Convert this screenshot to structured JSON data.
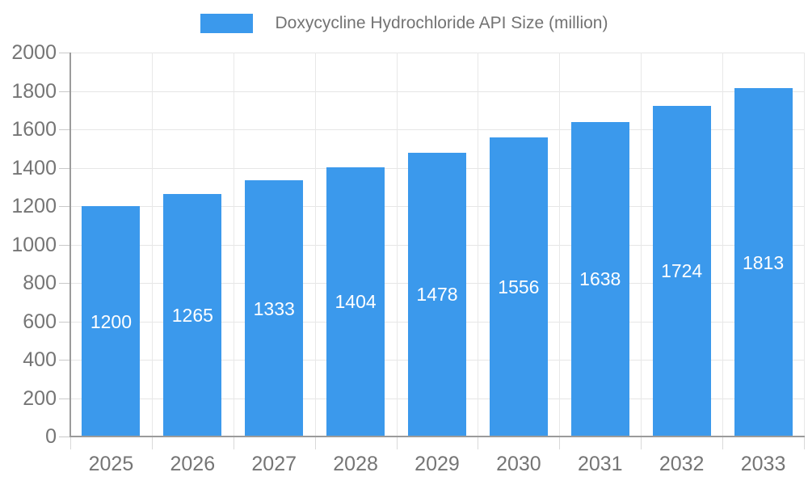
{
  "colors": {
    "bar": "#3b99ec",
    "bar_value_label": "#ffffff",
    "axis_line": "#9b9b9b",
    "grid_line": "#e6e6e6",
    "tick": "#c9c9c9",
    "axis_label_text": "#757575",
    "legend_text": "#737373",
    "background": "#ffffff"
  },
  "chart_data": {
    "type": "bar",
    "title": "",
    "legend": "Doxycycline Hydrochloride API Size (million)",
    "legend_position": "top-center",
    "categories": [
      "2025",
      "2026",
      "2027",
      "2028",
      "2029",
      "2030",
      "2031",
      "2032",
      "2033"
    ],
    "values": [
      1200,
      1265,
      1333,
      1404,
      1478,
      1556,
      1638,
      1724,
      1813
    ],
    "xlabel": "",
    "ylabel": "",
    "ylim": [
      0,
      2000
    ],
    "yticks": [
      0,
      200,
      400,
      600,
      800,
      1000,
      1200,
      1400,
      1600,
      1800,
      2000
    ],
    "grid": "on",
    "bar_value_labels": "inside-middle"
  }
}
